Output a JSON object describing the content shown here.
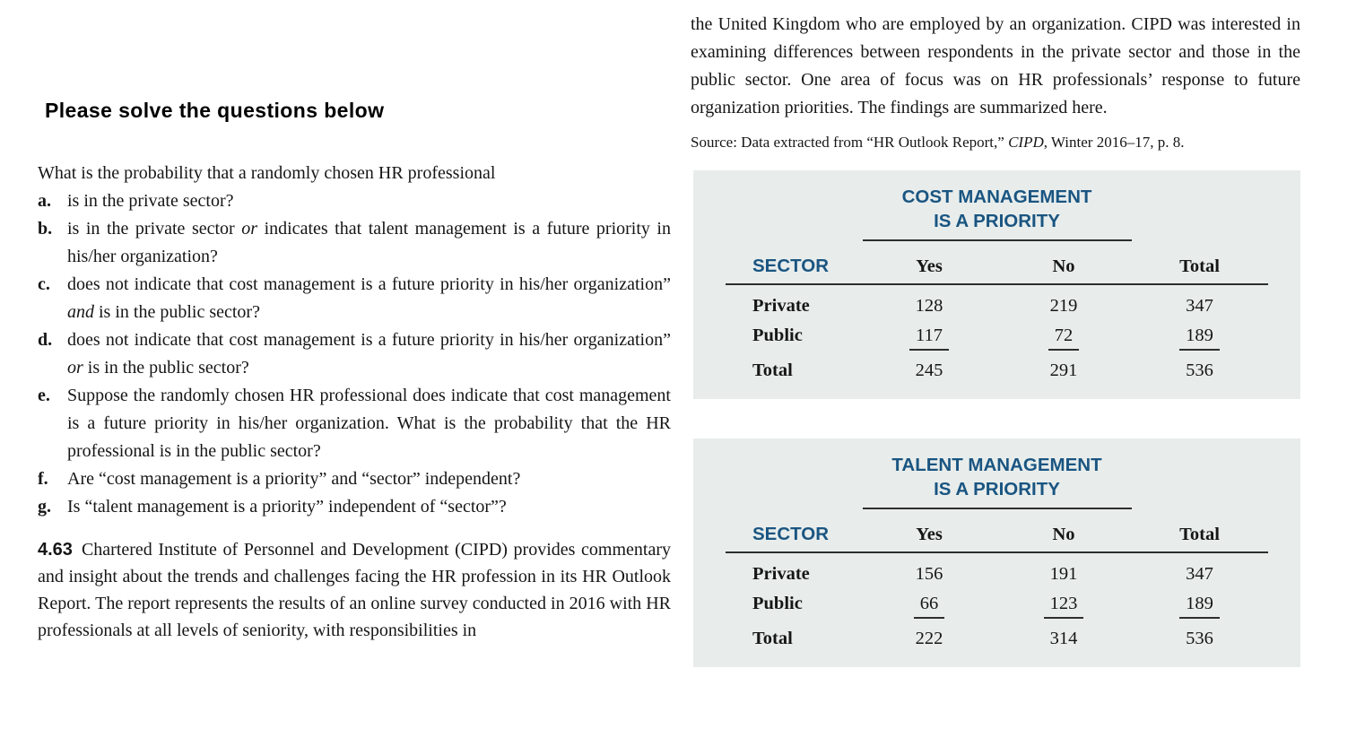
{
  "colors": {
    "accent_blue": "#1a5581",
    "card_bg": "#e8edec",
    "text": "#161616"
  },
  "left_column": {
    "heading": "Please solve the questions below",
    "intro": "What is the probability that a randomly chosen HR professional",
    "questions": [
      {
        "label": "a.",
        "pre": "is in the private sector?",
        "em": "",
        "post": ""
      },
      {
        "label": "b.",
        "pre": "is in the private sector ",
        "em": "or",
        "post": " indicates that talent management is a future priority in his/her organization?"
      },
      {
        "label": "c.",
        "pre": "does not indicate that cost management is a future priority in his/her organization” ",
        "em": "and",
        "post": " is in the public sector?"
      },
      {
        "label": "d.",
        "pre": "does not indicate that cost management is a future priority in his/her organization” ",
        "em": "or",
        "post": " is in the public sector?"
      },
      {
        "label": "e.",
        "pre": "Suppose the randomly chosen HR professional does indicate that cost management is a future priority in his/her organization. What is the probability that the HR professional is in the public sector?",
        "em": "",
        "post": ""
      },
      {
        "label": "f.",
        "pre": "Are “cost management is a priority” and “sector” independent?",
        "em": "",
        "post": ""
      },
      {
        "label": "g.",
        "pre": "Is “talent management is a priority” independent of “sector”?",
        "em": "",
        "post": ""
      }
    ],
    "problem": {
      "number": "4.63",
      "text": "Chartered Institute of Personnel and Development (CIPD) provides commentary and insight about the trends and challenges facing the HR profession in its HR Outlook Report. The report represents the results of an online survey conducted in 2016 with HR professionals at all levels of seniority, with responsibilities in"
    }
  },
  "right_column": {
    "paragraph": "the United Kingdom who are employed by an organization. CIPD was interested in examining differences between respondents in the private sector and those in the public sector. One area of focus was on HR professionals’ response to future organization priorities. The findings are summarized here.",
    "source": {
      "pre": "Source: Data extracted from “HR Outlook Report,” ",
      "em": "CIPD",
      "post": ", Winter 2016–17, p. 8."
    }
  },
  "tables": [
    {
      "title_line1": "COST MANAGEMENT",
      "title_line2": "IS A PRIORITY",
      "col_header": "SECTOR",
      "columns": [
        "Yes",
        "No",
        "Total"
      ],
      "rows": [
        {
          "label": "Private",
          "values": [
            "128",
            "219",
            "347"
          ]
        },
        {
          "label": "Public",
          "values": [
            "117",
            "72",
            "189"
          ]
        },
        {
          "label": "Total",
          "values": [
            "245",
            "291",
            "536"
          ]
        }
      ]
    },
    {
      "title_line1": "TALENT MANAGEMENT",
      "title_line2": "IS A PRIORITY",
      "col_header": "SECTOR",
      "columns": [
        "Yes",
        "No",
        "Total"
      ],
      "rows": [
        {
          "label": "Private",
          "values": [
            "156",
            "191",
            "347"
          ]
        },
        {
          "label": "Public",
          "values": [
            "66",
            "123",
            "189"
          ]
        },
        {
          "label": "Total",
          "values": [
            "222",
            "314",
            "536"
          ]
        }
      ]
    }
  ]
}
